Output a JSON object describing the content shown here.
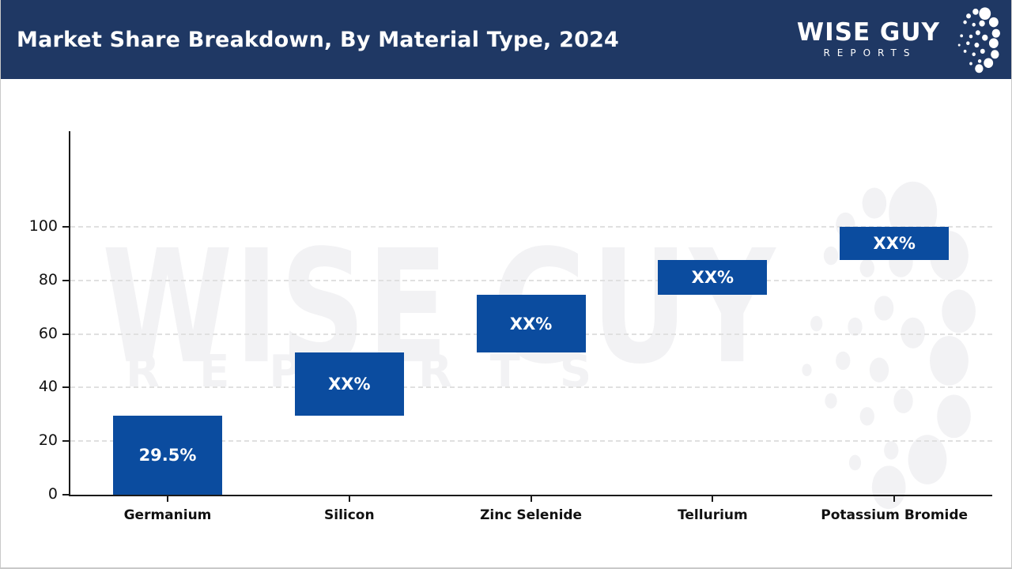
{
  "header": {
    "title": "Market Share Breakdown, By Material Type, 2024",
    "logo": {
      "line1": "WISE GUY",
      "line2": "REPORTS"
    }
  },
  "watermark": {
    "line1": "WISE GUY",
    "line2": "REPORTS"
  },
  "colors": {
    "header_bg": "#1F3864",
    "bar": "#0B4C9F",
    "grid": "#E0E0E0",
    "axis": "#1A1A1A",
    "bar_label": "#FFFFFF",
    "watermark": "#F2F2F4"
  },
  "chart_data": {
    "type": "bar",
    "subtype": "waterfall",
    "title": "Market Share Breakdown, By Material Type, 2024",
    "categories": [
      "Germanium",
      "Silicon",
      "Zinc Selenide",
      "Tellurium",
      "Potassium Bromide"
    ],
    "bars": [
      {
        "category": "Germanium",
        "start": 0,
        "end": 29.5,
        "label": "29.5%"
      },
      {
        "category": "Silicon",
        "start": 29.5,
        "end": 53,
        "label": "XX%"
      },
      {
        "category": "Zinc Selenide",
        "start": 53,
        "end": 74.5,
        "label": "XX%"
      },
      {
        "category": "Tellurium",
        "start": 74.5,
        "end": 87.5,
        "label": "XX%"
      },
      {
        "category": "Potassium Bromide",
        "start": 87.5,
        "end": 100,
        "label": "XX%"
      }
    ],
    "xlabel": "",
    "ylabel": "",
    "ylim": [
      0,
      100
    ],
    "yticks": [
      0,
      20,
      40,
      60,
      80,
      100
    ],
    "grid": "horizontal-dashed",
    "legend": "none"
  }
}
